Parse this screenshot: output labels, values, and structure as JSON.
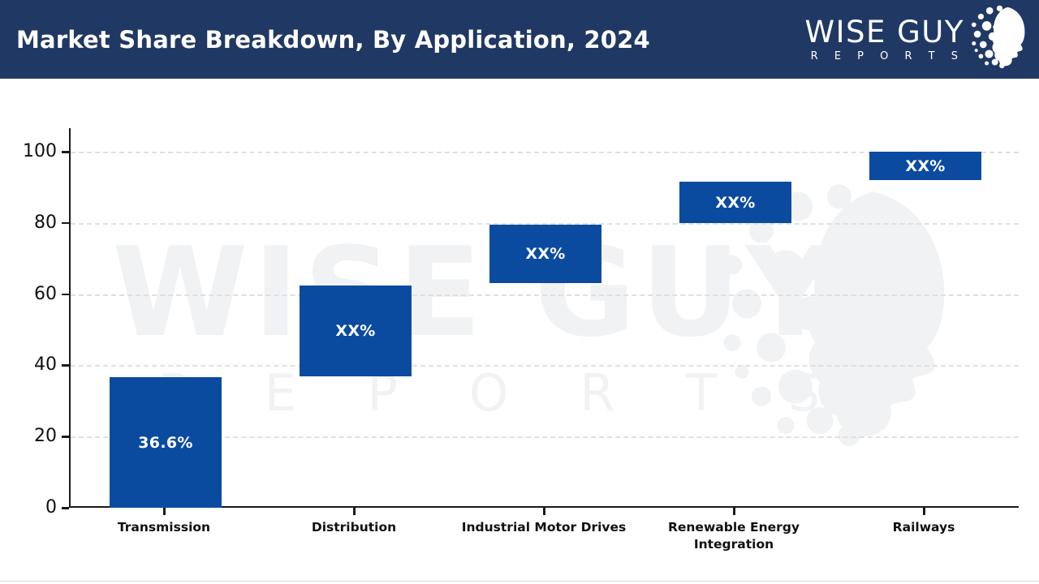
{
  "header": {
    "title": "Market Share Breakdown, By Application, 2024",
    "logo": {
      "brand": "WISE GUY",
      "sub": "R E P O R T S"
    },
    "bg_color": "#203864"
  },
  "watermark": {
    "brand": "WISE GUY",
    "sub": "R E P O R T S"
  },
  "chart_data": {
    "type": "bar",
    "subtype": "floating_stacked_percentage",
    "title": "Market Share Breakdown, By Application, 2024",
    "categories": [
      "Transmission",
      "Distribution",
      "Industrial Motor Drives",
      "Renewable Energy Integration",
      "Railways"
    ],
    "series": [
      {
        "name": "Market share (%)",
        "segments": [
          {
            "category": "Transmission",
            "start": 0,
            "end": 36.6,
            "label": "36.6%"
          },
          {
            "category": "Distribution",
            "start": 37,
            "end": 62.5,
            "label": "XX%"
          },
          {
            "category": "Industrial Motor Drives",
            "start": 63,
            "end": 79.5,
            "label": "XX%"
          },
          {
            "category": "Renewable Energy Integration",
            "start": 80,
            "end": 91.5,
            "label": "XX%"
          },
          {
            "category": "Railways",
            "start": 92,
            "end": 100,
            "label": "XX%"
          }
        ]
      }
    ],
    "yticks": [
      0,
      20,
      40,
      60,
      80,
      100
    ],
    "ylim": [
      0,
      106
    ],
    "grid": {
      "horizontal": true,
      "style": "dashed",
      "color": "#e0e0e0"
    },
    "legend": "none",
    "bar_color": "#0A4BA0",
    "bar_label_color": "#ffffff",
    "axis_color": "#1a1a1a"
  }
}
